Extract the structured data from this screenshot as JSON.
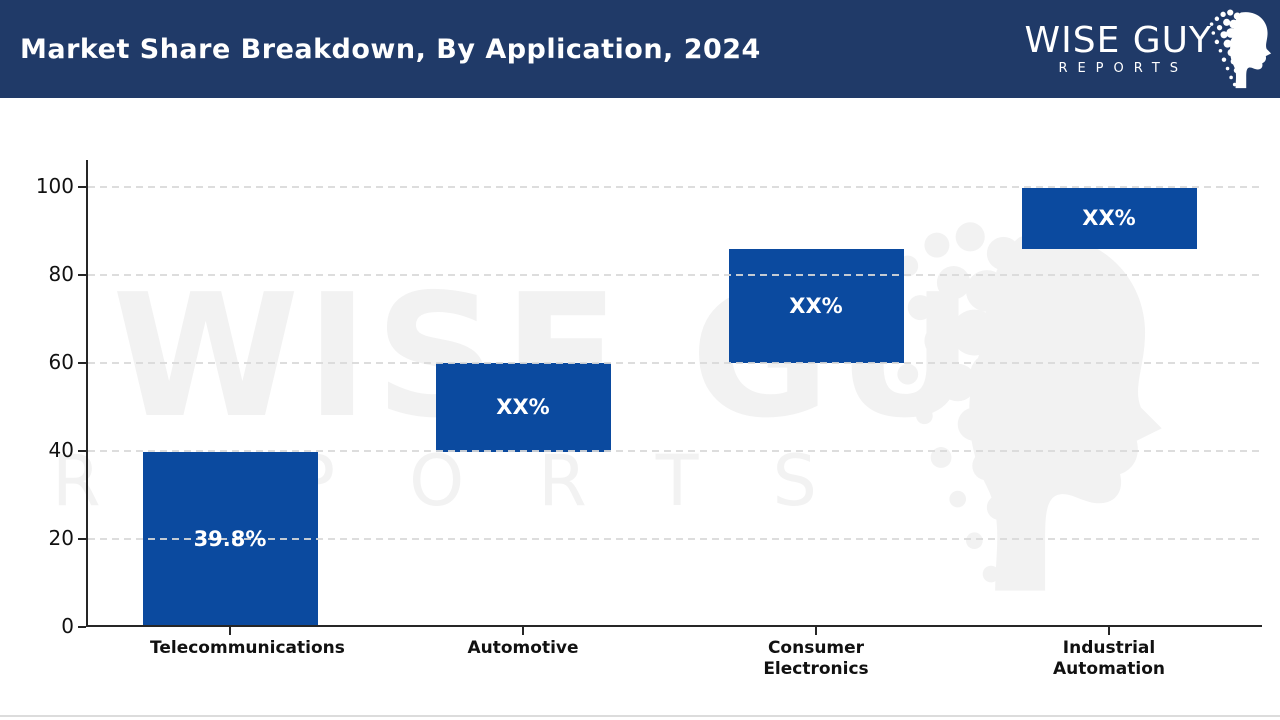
{
  "header": {
    "title": "Market Share Breakdown, By Application, 2024",
    "logo_line1": "WISE GUY",
    "logo_line2": "REPORTS"
  },
  "watermark": {
    "line1": "WISE GUY",
    "line2": "REPORTS"
  },
  "colors": {
    "header_bg": "#203a68",
    "bar_blue": "#0b4a9f",
    "value_label": "#ffffff",
    "grid": "#d9d9d9",
    "axis": "#262626",
    "watermark": "#f2f2f2"
  },
  "chart_data": {
    "type": "bar",
    "subtype": "waterfall",
    "title": "Market Share Breakdown, By Application, 2024",
    "categories": [
      "Telecommunications",
      "Automotive",
      "Consumer Electronics",
      "Industrial Automation"
    ],
    "segments": [
      {
        "category": "Telecommunications",
        "start": 0,
        "end": 39.8,
        "label": "39.8%"
      },
      {
        "category": "Automotive",
        "start": 39.8,
        "end": 60,
        "label": "XX%"
      },
      {
        "category": "Consumer Electronics",
        "start": 60,
        "end": 86,
        "label": "XX%"
      },
      {
        "category": "Industrial Automation",
        "start": 86,
        "end": 99.8,
        "label": "XX%"
      }
    ],
    "xlabel": "",
    "ylabel": "",
    "ylim": [
      0,
      106
    ],
    "yticks": [
      0,
      20,
      40,
      60,
      80,
      100
    ],
    "grid": "horizontal-dashed",
    "legend": "none",
    "bar_color": "#0b4a9f",
    "value_label_color": "#ffffff"
  }
}
